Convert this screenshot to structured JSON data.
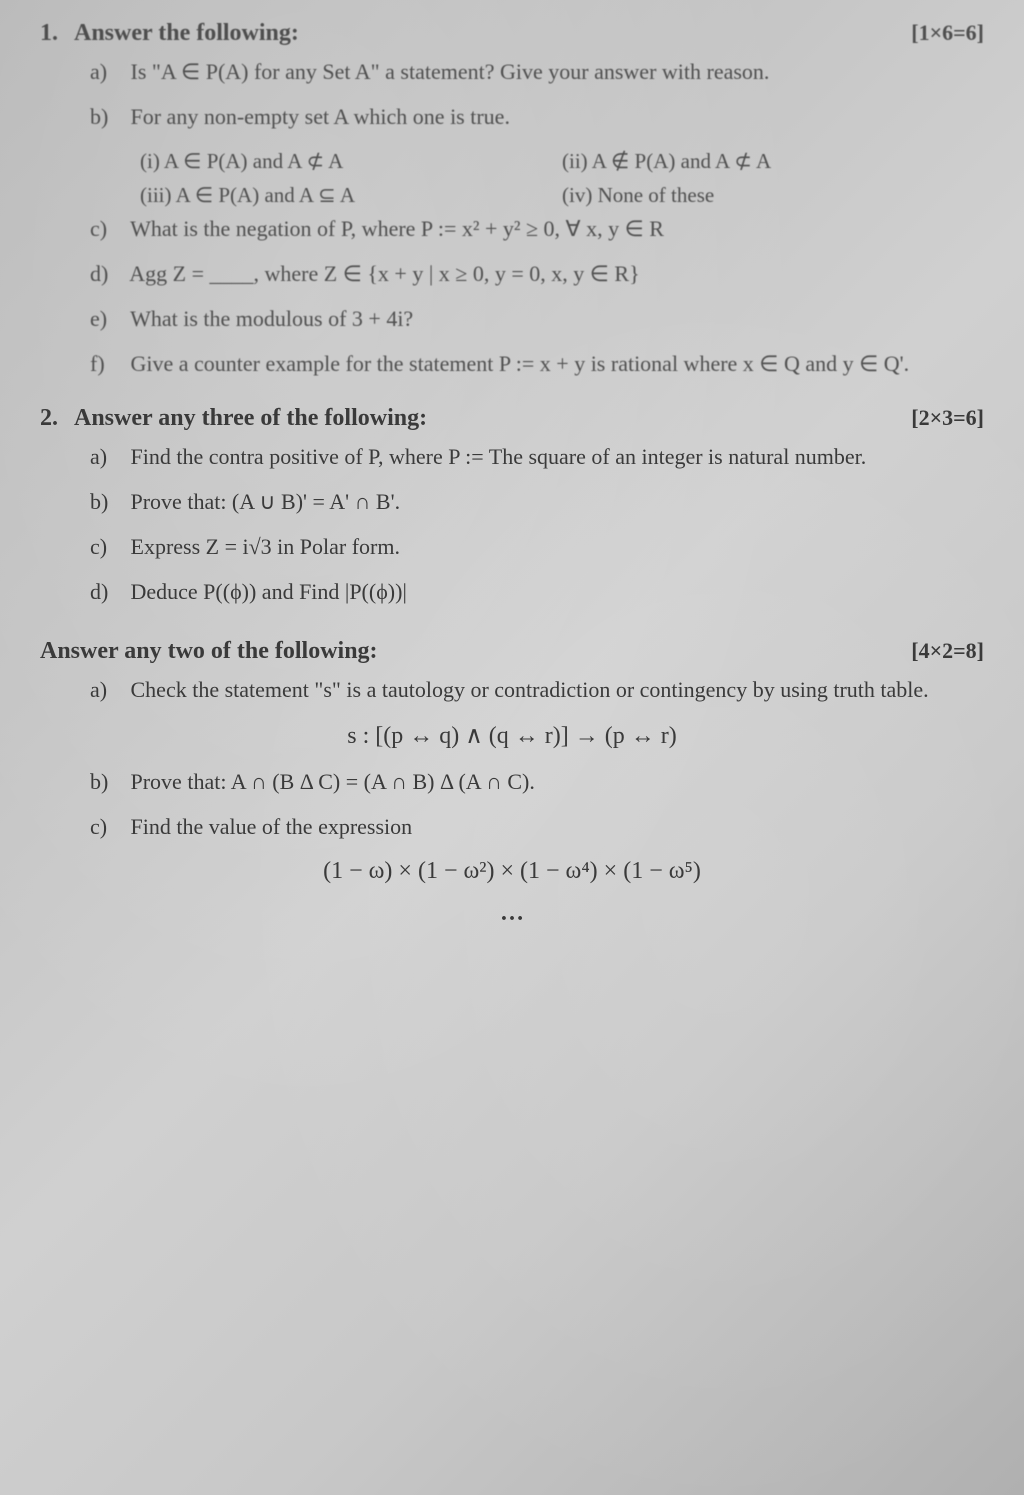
{
  "q1": {
    "number": "1.",
    "title": "Answer the following:",
    "marks": "[1×6=6]",
    "items": {
      "a": {
        "label": "a)",
        "text": "Is \"A ∈ P(A) for any Set A\" a statement? Give your answer with reason."
      },
      "b": {
        "label": "b)",
        "text": "For any non-empty set A which one is true.",
        "opt_i": "(i)     A ∈ P(A) and A ⊄ A",
        "opt_ii": "(ii) A ∉ P(A) and A ⊄ A",
        "opt_iii": "(iii) A ∈ P(A) and A ⊆ A",
        "opt_iv": "(iv) None of these"
      },
      "c": {
        "label": "c)",
        "text": "What is the negation of P, where P := x² + y² ≥ 0, ∀ x, y ∈ R"
      },
      "d": {
        "label": "d)",
        "text": "Agg Z = ____, where Z ∈ {x + y | x ≥ 0, y = 0, x, y ∈ R}"
      },
      "e": {
        "label": "e)",
        "text": "What is the modulous of 3 + 4i?"
      },
      "f": {
        "label": "f)",
        "text": "Give a counter example for the statement P := x + y is rational where x ∈ Q and y ∈ Q'."
      }
    }
  },
  "q2": {
    "number": "2.",
    "title": "Answer any three of the following:",
    "marks": "[2×3=6]",
    "items": {
      "a": {
        "label": "a)",
        "text": "Find the contra positive of P, where P := The square of an integer is natural number."
      },
      "b": {
        "label": "b)",
        "text": "Prove that: (A ∪ B)' = A' ∩ B'."
      },
      "c": {
        "label": "c)",
        "text": "Express Z = i√3 in Polar form."
      },
      "d": {
        "label": "d)",
        "text": "Deduce P((ϕ)) and Find |P((ϕ))|"
      }
    }
  },
  "q3": {
    "title": "Answer any two of the following:",
    "marks": "[4×2=8]",
    "items": {
      "a": {
        "label": "a)",
        "text": "Check the statement \"s\" is a tautology or contradiction or contingency by using truth table.",
        "formula": "s : [(p ↔ q) ∧ (q ↔ r)] → (p ↔ r)"
      },
      "b": {
        "label": "b)",
        "text": "Prove that: A ∩ (B Δ C) = (A ∩ B) Δ (A ∩ C)."
      },
      "c": {
        "label": "c)",
        "text": "Find the value of the expression",
        "formula": "(1 − ω) × (1 − ω²) × (1 − ω⁴) × (1 − ω⁵)"
      }
    }
  },
  "dots": "…"
}
